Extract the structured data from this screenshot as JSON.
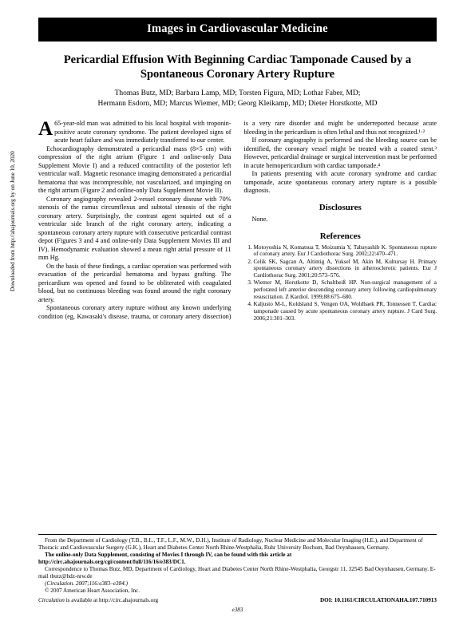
{
  "banner": "Images in Cardiovascular Medicine",
  "title": "Pericardial Effusion With Beginning Cardiac Tamponade Caused by a Spontaneous Coronary Artery Rupture",
  "authors_line1": "Thomas Butz, MD; Barbara Lamp, MD; Torsten Figura, MD; Lothar Faber, MD;",
  "authors_line2": "Hermann Esdorn, MD; Marcus Wiemer, MD; Georg Kleikamp, MD; Dieter Horstkotte, MD",
  "p1": "A 65-year-old man was admitted to his local hospital with troponin-positive acute coronary syndrome. The patient developed signs of acute heart failure and was immediately transferred to our center.",
  "p2": "Echocardiography demonstrated a pericardial mass (8×5 cm) with compression of the right atrium (Figure 1 and online-only Data Supplement Movie I) and a reduced contractility of the posterior left ventricular wall. Magnetic resonance imaging demonstrated a pericardial hematoma that was incompressible, not vascularized, and impinging on the right atrium (Figure 2 and online-only Data Supplement Movie II).",
  "p3": "Coronary angiography revealed 2-vessel coronary disease with 70% stenosis of the ramus circumflexus and subtotal stenosis of the right coronary artery. Surprisingly, the contrast agent squirted out of a ventricular side branch of the right coronary artery, indicating a spontaneous coronary artery rupture with consecutive pericardial contrast depot (Figures 3 and 4 and online-only Data Supplement Movies III and IV). Hemodynamic evaluation showed a mean right atrial pressure of 11 mm Hg.",
  "p4": "On the basis of these findings, a cardiac operation was performed with evacuation of the pericardial hematoma and bypass grafting. The pericardium was opened and found to be obliterated with coagulated blood, but no continuous bleeding was found around the right coronary artery.",
  "p5": "Spontaneous coronary artery rupture without any known underlying condition (eg, Kawasaki's disease, trauma, or coronary artery dissection) is a very rare disorder and might be underreported because acute bleeding in the pericardium is often lethal and thus not recognized.¹·²",
  "p6": "If coronary angiography is performed and the bleeding source can be identified, the coronary vessel might be treated with a coated stent.³ However, pericardial drainage or surgical intervention must be performed in acute hemopericardium with cardiac tamponade.⁴",
  "p7": "In patients presenting with acute coronary syndrome and cardiac tamponade, acute spontaneous coronary artery rupture is a possible diagnosis.",
  "disclosures_h": "Disclosures",
  "disclosures_b": "None.",
  "references_h": "References",
  "ref1": "Motoyoshia N, Komatsua T, Moizumia Y, Tabayashib K. Spontaneous rupture of coronary artery. Eur J Cardiothorac Surg. 2002;22:470–471.",
  "ref2": "Celik SK, Sagcan A, Altintig A, Yuksel M, Akin M, Kultursay H. Primary spontaneous coronary artery dissections in atherosclerotic patients. Eur J Cardiothorac Surg. 2001;20:573–576.",
  "ref3": "Wiemer M, Horstkotte D, Schultheiß HP. Non-surgical management of a perforated left anterior descending coronary artery following cardiopulmonary resuscitation. Z Kardiol. 1999;88:675–680.",
  "ref4": "Kaljusto M-L, Koldsland S, Vengen OA, Woldbaek PR, Tonnessen T. Cardiac tamponade caused by acute spontaneous coronary artery rupture. J Card Surg. 2006;21:301–303.",
  "footer_from": "From the Department of Cardiology (T.B., B.L., T.F., L.F., M.W., D.H.), Institute of Radiology, Nuclear Medicine and Molecular Imaging (H.E.), and Department of Thoracic and Cardiovascular Surgery (G.K.), Heart and Diabetes Center North Rhine-Westphalia, Ruhr University Bochum, Bad Oeynhausen, Germany.",
  "footer_supp": "The online-only Data Supplement, consisting of Movies I through IV, can be found with this article at http://circ.ahajournals.org/cgi/content/full/116/16/e383/DC1.",
  "footer_corr": "Correspondence to Thomas Butz, MD, Department of Cardiology, Heart and Diabetes Center North Rhine-Westphalia, Georgstr 11, 32545 Bad Oeynhausen, Germany. E-mail tbutz@hdz-nrw.de",
  "footer_cite": "(Circulation. 2007;116:e383–e384.)",
  "footer_copy": "© 2007 American Heart Association, Inc.",
  "footer_avail": "Circulation is available at http://circ.ahajournals.org",
  "footer_doi": "DOI: 10.1161/CIRCULATIONAHA.107.710913",
  "footer_page": "e383",
  "watermark": "Downloaded from http://ahajournals.org by on June 10, 2020"
}
